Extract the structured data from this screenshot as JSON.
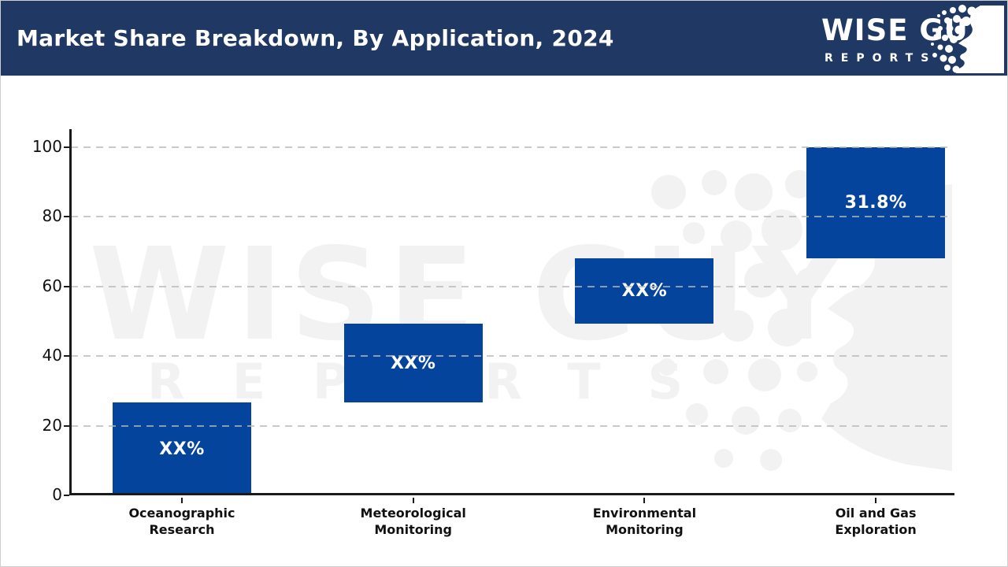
{
  "header": {
    "title": "Market Share Breakdown, By Application, 2024",
    "logo": {
      "line1": "WISE GUY",
      "line2": "R E P O R T S",
      "face_icon": "dotted-face-profile"
    }
  },
  "watermark": {
    "line1": "WISE GUY",
    "line2": "REPORTS",
    "face_icon": "dotted-face-profile"
  },
  "colors": {
    "header_bg": "#1f3864",
    "bar": "#05449d",
    "bar_label_text": "#ffffff",
    "grid": "#b8b8b8",
    "axis": "#1a1a1a",
    "watermark": "#f2f2f2",
    "title_text": "#ffffff"
  },
  "chart_data": {
    "type": "bar",
    "subtype": "waterfall-floating-bars",
    "title": "Market Share Breakdown, By Application, 2024",
    "categories": [
      "Oceanographic\nResearch",
      "Meteorological\nMonitoring",
      "Environmental\nMonitoring",
      "Oil and Gas\nExploration"
    ],
    "segments": [
      {
        "category": "Oceanographic Research",
        "start": 0,
        "end": 26.6,
        "size": 26.6,
        "label": "XX%"
      },
      {
        "category": "Meteorological Monitoring",
        "start": 26.6,
        "end": 49.4,
        "size": 22.8,
        "label": "XX%"
      },
      {
        "category": "Environmental Monitoring",
        "start": 49.4,
        "end": 68.2,
        "size": 18.8,
        "label": "XX%"
      },
      {
        "category": "Oil and Gas Exploration",
        "start": 68.2,
        "end": 100,
        "size": 31.8,
        "label": "31.8%"
      }
    ],
    "xlabel": "",
    "ylabel": "",
    "ylim": [
      0,
      100
    ],
    "yticks": [
      0,
      20,
      40,
      60,
      80,
      100
    ],
    "grid": "horizontal dashed, drawn above bars",
    "legend": "none"
  }
}
